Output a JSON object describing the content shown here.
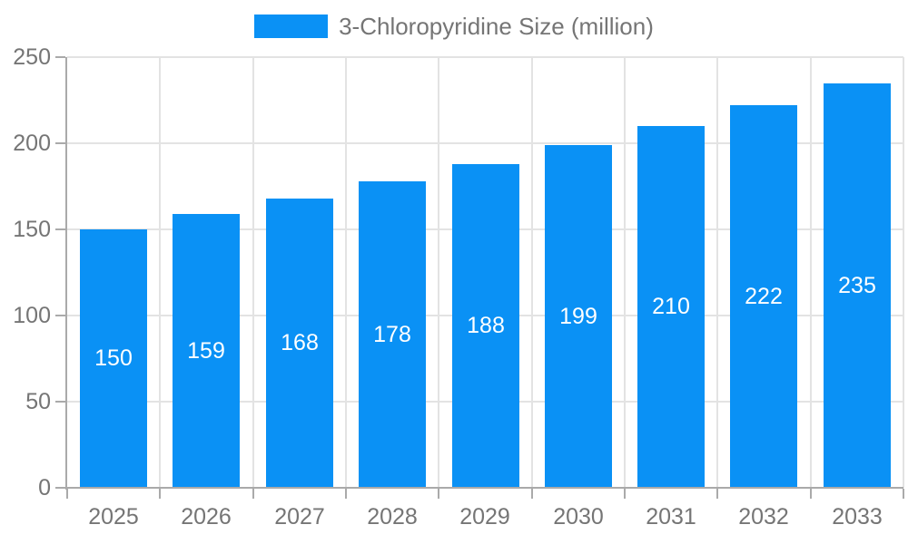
{
  "legend": {
    "label": "3-Chloropyridine Size (million)"
  },
  "chart_data": {
    "type": "bar",
    "title": "",
    "xlabel": "",
    "ylabel": "",
    "categories": [
      "2025",
      "2026",
      "2027",
      "2028",
      "2029",
      "2030",
      "2031",
      "2032",
      "2033"
    ],
    "series": [
      {
        "name": "3-Chloropyridine Size (million)",
        "values": [
          150,
          159,
          168,
          178,
          188,
          199,
          210,
          222,
          235
        ]
      }
    ],
    "ylim": [
      0,
      250
    ],
    "yticks": [
      0,
      50,
      100,
      150,
      200,
      250
    ],
    "grid": true,
    "legend_position": "top-center",
    "colors": {
      "bar": "#0a91f5",
      "value_label": "#ffffff",
      "axis_text": "#757575",
      "grid_line": "#e3e3e3",
      "axis_line": "#aaaaaa"
    }
  }
}
